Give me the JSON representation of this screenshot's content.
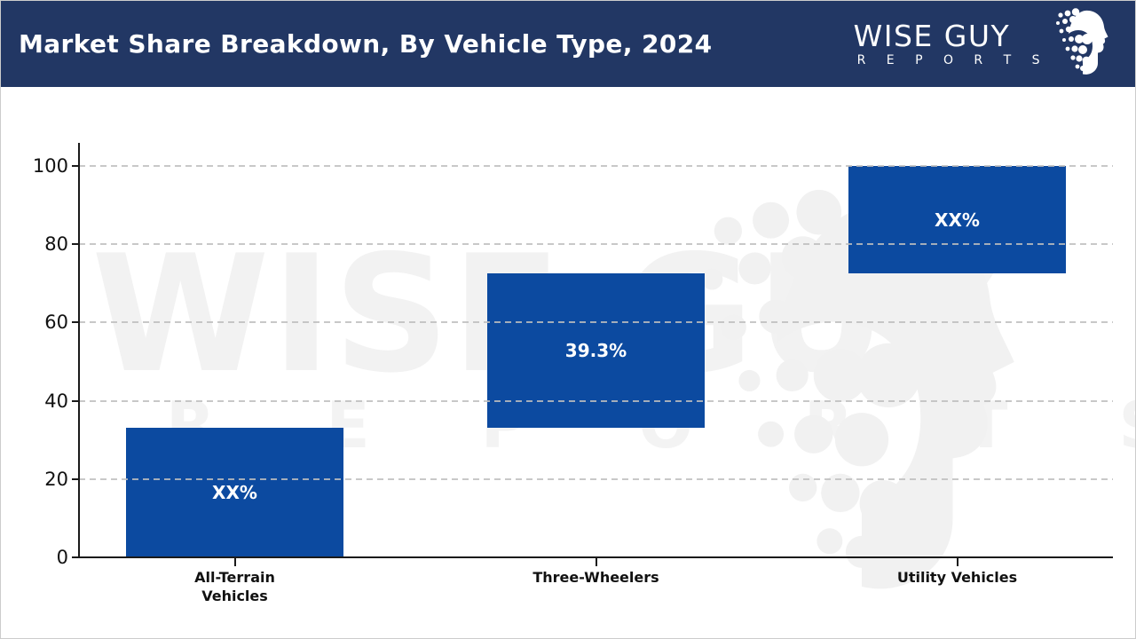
{
  "page": {
    "background": "#ffffff",
    "border_color": "#cccccc"
  },
  "header": {
    "title": "Market Share Breakdown, By Vehicle Type, 2024",
    "background": "#223764",
    "logo": {
      "line1": "WISE GUY",
      "line2": "R E P O R T S"
    }
  },
  "watermark": {
    "big_text": "WISE GUY",
    "small_text": "R E P O R T S"
  },
  "chart_data": {
    "type": "bar",
    "variant": "floating_segment_waterfall",
    "title": "",
    "xlabel": "",
    "ylabel": "",
    "categories": [
      "All-Terrain Vehicles",
      "Three-Wheelers",
      "Utility Vehicles"
    ],
    "segments": [
      {
        "category": "All-Terrain Vehicles",
        "start": 0,
        "end": 33.2,
        "span": 33.2,
        "label": "XX%"
      },
      {
        "category": "Three-Wheelers",
        "start": 33.2,
        "end": 72.5,
        "span": 39.3,
        "label": "39.3%"
      },
      {
        "category": "Utility Vehicles",
        "start": 72.5,
        "end": 100,
        "span": 27.5,
        "label": "XX%"
      }
    ],
    "yticks": [
      0,
      20,
      40,
      60,
      80,
      100
    ],
    "ylim": [
      0,
      105.8
    ],
    "grid": {
      "axis": "y",
      "style": "dashed",
      "over_bars": true,
      "color": "#d8d8d8"
    },
    "legend": "none",
    "bar_color": "#0c4aa0",
    "bar_label_color": "#ffffff",
    "axis_color": "#1a1a1a",
    "tick_label_color": "#111111"
  }
}
